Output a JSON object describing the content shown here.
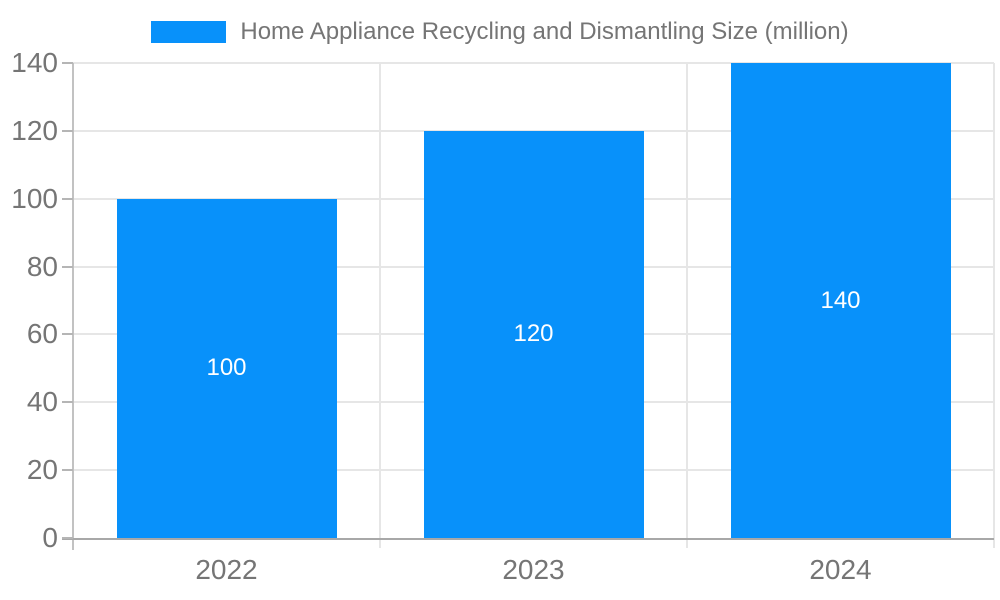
{
  "legend": {
    "label": "Home Appliance Recycling and Dismantling Size (million)",
    "swatch_color": "#0891fa"
  },
  "chart_data": {
    "type": "bar",
    "title": "Home Appliance Recycling and Dismantling Size (million)",
    "categories": [
      "2022",
      "2023",
      "2024"
    ],
    "values": [
      100,
      120,
      140
    ],
    "value_labels": [
      "100",
      "120",
      "140"
    ],
    "xlabel": "",
    "ylabel": "",
    "ylim": [
      0,
      140
    ],
    "yticks": [
      0,
      20,
      40,
      60,
      80,
      100,
      120,
      140
    ],
    "grid": true,
    "legend_position": "top-center",
    "bar_color": "#0891fa",
    "value_label_color": "#ffffff",
    "axis_text_color": "#757575",
    "grid_color": "#e6e6e6",
    "axis_line_color": "#a8a8a8",
    "background_color": "#ffffff"
  }
}
